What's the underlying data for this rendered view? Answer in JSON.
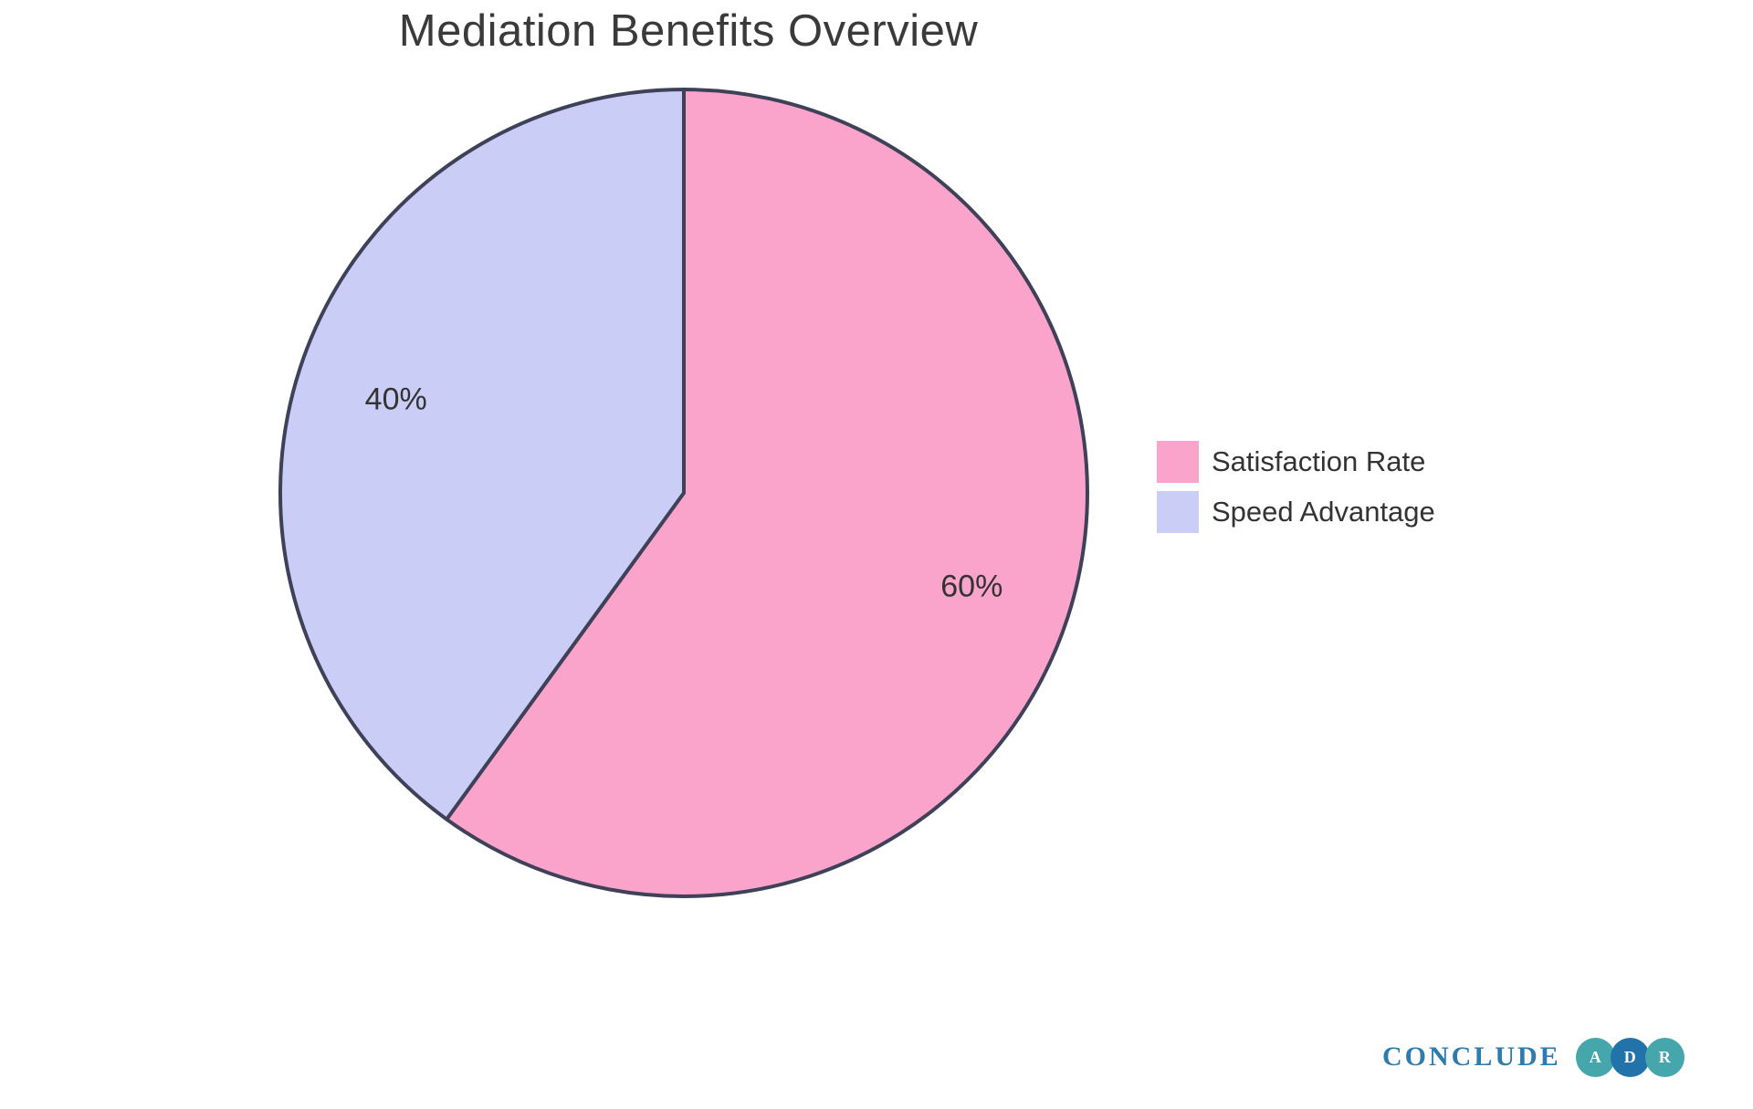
{
  "chart_data": {
    "type": "pie",
    "title": "Mediation Benefits Overview",
    "labels": [
      "Satisfaction Rate",
      "Speed Advantage"
    ],
    "values": [
      60,
      40
    ],
    "value_labels": [
      "60%",
      "40%"
    ],
    "colors": [
      "#FAA3CB",
      "#CACDF6"
    ],
    "slice_outline_color": "#3E4157",
    "start_angle": "12-oclock",
    "direction": "clockwise",
    "legend_position": "right-middle",
    "title_color": "#3A3A3A",
    "label_color": "#333333",
    "background": "#FFFFFF"
  },
  "logo": {
    "wordmark": "CONCLUDE",
    "wordmark_color": "#2E7BAE",
    "letters": [
      "A",
      "D",
      "R"
    ],
    "circle_colors": [
      "#45A6AC",
      "#2173A9",
      "#45A6AC"
    ],
    "letter_color": "#FFFFFF"
  }
}
